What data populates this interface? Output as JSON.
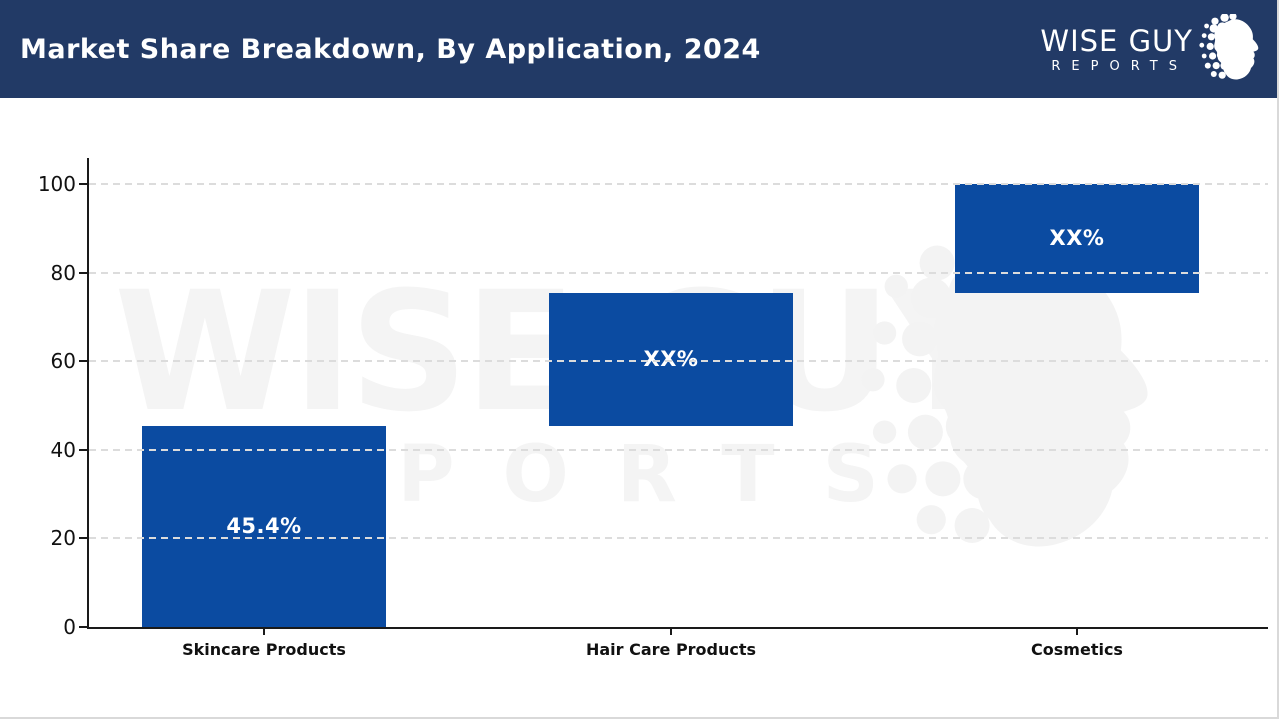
{
  "header": {
    "title": "Market Share Breakdown, By Application, 2024",
    "logo": {
      "line1": "WISE GUY",
      "line2": "REPORTS"
    }
  },
  "watermark": {
    "line1": "WISE GUY",
    "line2": "REPORTS"
  },
  "chart_data": {
    "type": "bar",
    "subtype": "waterfall",
    "title": "Market Share Breakdown, By Application, 2024",
    "categories": [
      "Skincare Products",
      "Hair Care Products",
      "Cosmetics"
    ],
    "bars": [
      {
        "category": "Skincare Products",
        "start": 0,
        "end": 45.4,
        "label": "45.4%"
      },
      {
        "category": "Hair Care Products",
        "start": 45.4,
        "end": 75.5,
        "label": "XX%"
      },
      {
        "category": "Cosmetics",
        "start": 75.5,
        "end": 100,
        "label": "XX%"
      }
    ],
    "yticks": [
      0,
      20,
      40,
      60,
      80,
      100
    ],
    "ylim": [
      0,
      106
    ],
    "xlabel": "",
    "ylabel": "",
    "grid": "horizontal-dashed",
    "legend": "none",
    "bar_color": "#0B4BA1",
    "label_color": "#ffffff",
    "axis_color": "#1a1a1a",
    "grid_color": "#dcdcdc",
    "header_color": "#223A66",
    "watermark_color": "#f4f4f4"
  }
}
